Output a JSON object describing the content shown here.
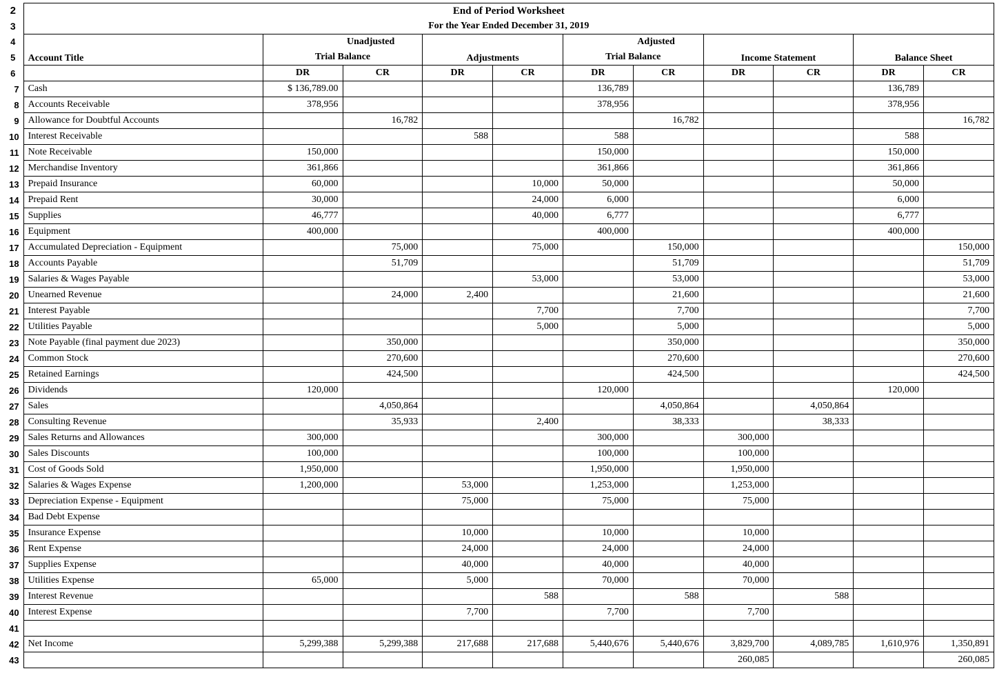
{
  "titles": {
    "title": "End of Period Worksheet",
    "subtitle": "For the Year Ended December 31, 2019"
  },
  "headers": {
    "account_title": "Account Title",
    "unadjusted": "Unadjusted",
    "trial_balance": "Trial Balance",
    "adjustments": "Adjustments",
    "adjusted": "Adjusted",
    "income_statement": "Income Statement",
    "balance_sheet": "Balance Sheet",
    "dr": "DR",
    "cr": "CR"
  },
  "row_start": 2,
  "rows": [
    {
      "n": 7,
      "t": "Cash",
      "utb_dr": "$   136,789.00",
      "atb_dr": "136,789",
      "bs_dr": "136,789"
    },
    {
      "n": 8,
      "t": "Accounts Receivable",
      "utb_dr": "378,956",
      "atb_dr": "378,956",
      "bs_dr": "378,956"
    },
    {
      "n": 9,
      "t": "Allowance for Doubtful Accounts",
      "utb_cr": "16,782",
      "atb_cr": "16,782",
      "bs_cr": "16,782"
    },
    {
      "n": 10,
      "t": "Interest Receivable",
      "adj_dr": "588",
      "atb_dr": "588",
      "bs_dr": "588"
    },
    {
      "n": 11,
      "t": "Note Receivable",
      "utb_dr": "150,000",
      "atb_dr": "150,000",
      "bs_dr": "150,000"
    },
    {
      "n": 12,
      "t": "Merchandise Inventory",
      "utb_dr": "361,866",
      "atb_dr": "361,866",
      "bs_dr": "361,866"
    },
    {
      "n": 13,
      "t": "Prepaid Insurance",
      "utb_dr": "60,000",
      "adj_cr": "10,000",
      "atb_dr": "50,000",
      "bs_dr": "50,000"
    },
    {
      "n": 14,
      "t": "Prepaid Rent",
      "utb_dr": "30,000",
      "adj_cr": "24,000",
      "atb_dr": "6,000",
      "bs_dr": "6,000"
    },
    {
      "n": 15,
      "t": "Supplies",
      "utb_dr": "46,777",
      "adj_cr": "40,000",
      "atb_dr": "6,777",
      "bs_dr": "6,777"
    },
    {
      "n": 16,
      "t": "Equipment",
      "utb_dr": "400,000",
      "atb_dr": "400,000",
      "bs_dr": "400,000"
    },
    {
      "n": 17,
      "t": "Accumulated Depreciation -  Equipment",
      "utb_cr": "75,000",
      "adj_cr": "75,000",
      "atb_cr": "150,000",
      "bs_cr": "150,000"
    },
    {
      "n": 18,
      "t": "Accounts Payable",
      "utb_cr": "51,709",
      "atb_cr": "51,709",
      "bs_cr": "51,709"
    },
    {
      "n": 19,
      "t": "Salaries & Wages Payable",
      "adj_cr": "53,000",
      "atb_cr": "53,000",
      "bs_cr": "53,000"
    },
    {
      "n": 20,
      "t": "Unearned Revenue",
      "utb_cr": "24,000",
      "adj_dr": "2,400",
      "atb_cr": "21,600",
      "bs_cr": "21,600"
    },
    {
      "n": 21,
      "t": "Interest Payable",
      "adj_cr": "7,700",
      "atb_cr": "7,700",
      "bs_cr": "7,700"
    },
    {
      "n": 22,
      "t": "Utilities Payable",
      "adj_cr": "5,000",
      "atb_cr": "5,000",
      "bs_cr": "5,000"
    },
    {
      "n": 23,
      "t": "Note Payable (final payment due 2023)",
      "utb_cr": "350,000",
      "atb_cr": "350,000",
      "bs_cr": "350,000"
    },
    {
      "n": 24,
      "t": "Common Stock",
      "utb_cr": "270,600",
      "atb_cr": "270,600",
      "bs_cr": "270,600"
    },
    {
      "n": 25,
      "t": "Retained Earnings",
      "utb_cr": "424,500",
      "atb_cr": "424,500",
      "bs_cr": "424,500"
    },
    {
      "n": 26,
      "t": "Dividends",
      "utb_dr": "120,000",
      "atb_dr": "120,000",
      "bs_dr": "120,000"
    },
    {
      "n": 27,
      "t": "Sales",
      "utb_cr": "4,050,864",
      "atb_cr": "4,050,864",
      "is_cr": "4,050,864"
    },
    {
      "n": 28,
      "t": "Consulting Revenue",
      "utb_cr": "35,933",
      "adj_cr": "2,400",
      "atb_cr": "38,333",
      "is_cr": "38,333"
    },
    {
      "n": 29,
      "t": "Sales Returns and Allowances",
      "utb_dr": "300,000",
      "atb_dr": "300,000",
      "is_dr": "300,000"
    },
    {
      "n": 30,
      "t": "Sales Discounts",
      "utb_dr": "100,000",
      "atb_dr": "100,000",
      "is_dr": "100,000"
    },
    {
      "n": 31,
      "t": "Cost of Goods Sold",
      "utb_dr": "1,950,000",
      "atb_dr": "1,950,000",
      "is_dr": "1,950,000"
    },
    {
      "n": 32,
      "t": "Salaries & Wages Expense",
      "utb_dr": "1,200,000",
      "adj_dr": "53,000",
      "atb_dr": "1,253,000",
      "is_dr": "1,253,000"
    },
    {
      "n": 33,
      "t": "Depreciation Expense - Equipment",
      "adj_dr": "75,000",
      "atb_dr": "75,000",
      "is_dr": "75,000"
    },
    {
      "n": 34,
      "t": "Bad Debt Expense"
    },
    {
      "n": 35,
      "t": "Insurance Expense",
      "adj_dr": "10,000",
      "atb_dr": "10,000",
      "is_dr": "10,000"
    },
    {
      "n": 36,
      "t": "Rent Expense",
      "adj_dr": "24,000",
      "atb_dr": "24,000",
      "is_dr": "24,000"
    },
    {
      "n": 37,
      "t": "Supplies Expense",
      "adj_dr": "40,000",
      "atb_dr": "40,000",
      "is_dr": "40,000"
    },
    {
      "n": 38,
      "t": "Utilities Expense",
      "utb_dr": "65,000",
      "adj_dr": "5,000",
      "atb_dr": "70,000",
      "is_dr": "70,000"
    },
    {
      "n": 39,
      "t": "Interest Revenue",
      "adj_cr": "588",
      "atb_cr": "588",
      "is_cr": "588"
    },
    {
      "n": 40,
      "t": "Interest Expense",
      "adj_dr": "7,700",
      "atb_dr": "7,700",
      "is_dr": "7,700"
    }
  ],
  "blank_row": 41,
  "totals": {
    "n": 42,
    "label": "Net Income",
    "utb_dr": "5,299,388",
    "utb_cr": "5,299,388",
    "adj_dr": "217,688",
    "adj_cr": "217,688",
    "atb_dr": "5,440,676",
    "atb_cr": "5,440,676",
    "is_dr": "3,829,700",
    "is_cr": "4,089,785",
    "bs_dr": "1,610,976",
    "bs_cr": "1,350,891"
  },
  "net_income_row": {
    "n": 43,
    "is_dr": "260,085",
    "bs_cr": "260,085"
  }
}
